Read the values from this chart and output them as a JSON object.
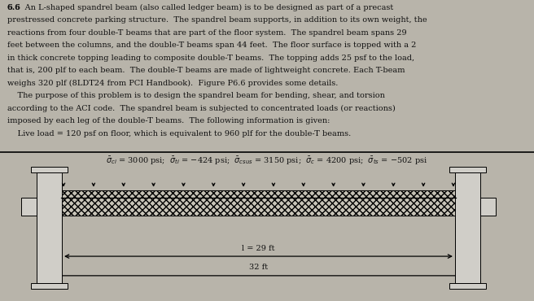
{
  "span_label": "l = 29 ft",
  "total_label": "32 ft",
  "text_bg": "#d4d0ca",
  "diagram_bg": "#b8b4aa",
  "column_fill": "#d0cec8",
  "beam_fill": "#c8c6be",
  "hatch_fill": "#c0beb4",
  "text_color": "#111111",
  "n_arrows": 14,
  "formula": "$\\bar{\\sigma}_{ci}$ = 3000 psi;  $\\bar{\\sigma}_{ti}$ = $-$424 psi;  $\\bar{\\sigma}_{csus}$ = 3150 psi;  $\\bar{\\sigma}_{c}$ = 4200 psi;  $\\bar{\\sigma}_{ts}$ = $-$502 psi",
  "line1": "6.6  An L-shaped spandrel beam (also called ledger beam) is to be designed as part of a precast",
  "line2": "prestressed concrete parking structure.  The spandrel beam supports, in addition to its own weight, the",
  "line3": "reactions from four double-T beams that are part of the floor system.  The spandrel beam spans 29",
  "line4": "feet between the columns, and the double-T beams span 44 feet.  The floor surface is topped with a 2",
  "line5": "in thick concrete topping leading to composite double-T beams.  The topping adds 25 psf to the load,",
  "line6": "that is, 200 plf to each beam.  The double-T beams are made of lightweight concrete. Each T-beam",
  "line7": "weighs 320 plf (8LDT24 from PCI Handbook).  Figure P6.6 provides some details.",
  "line8": "    The purpose of this problem is to design the spandrel beam for bending, shear, and torsion",
  "line9": "according to the ACI code.  The spandrel beam is subjected to concentrated loads (or reactions)",
  "line10": "imposed by each leg of the double-T beams.  The following information is given:",
  "line11": "    Live load = 120 psf on floor, which is equivalent to 960 plf for the double-T beams."
}
